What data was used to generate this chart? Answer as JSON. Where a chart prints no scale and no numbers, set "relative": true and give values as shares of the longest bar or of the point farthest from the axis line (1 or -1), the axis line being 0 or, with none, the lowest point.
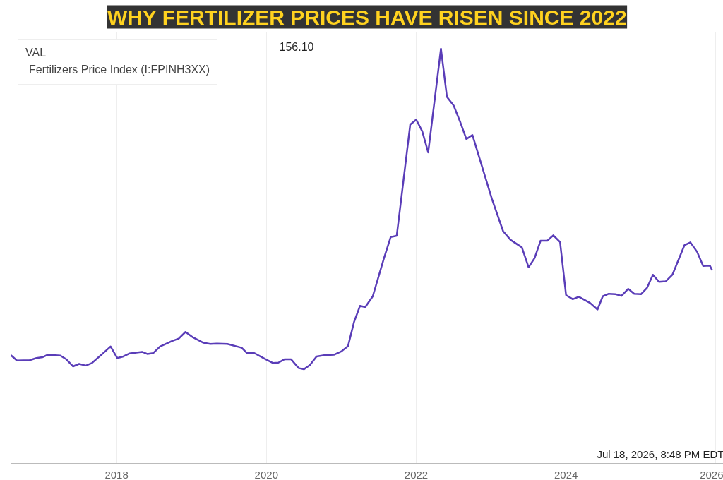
{
  "chart_data": {
    "type": "line",
    "title": "WHY FERTILIZER PRICES HAVE RISEN SINCE 2022",
    "relative": true,
    "legend_title": "VAL",
    "legend": "top left",
    "grid": "x",
    "xlim": [
      2016.59,
      2026.1
    ],
    "xticks": [
      2018,
      2020,
      2022,
      2024,
      2026
    ],
    "annotations": [
      "156.10",
      "Jul 18, 2026, 8:48 PM EDT"
    ],
    "series": [
      {
        "name": "Fertilizers Price Index (I:FPINH3XX)",
        "color": "#5a3db8",
        "x": [
          2016.59,
          2016.67,
          2016.84,
          2016.93,
          2017.01,
          2017.08,
          2017.25,
          2017.33,
          2017.42,
          2017.5,
          2017.59,
          2017.67,
          2017.81,
          2017.92,
          2018.01,
          2018.09,
          2018.17,
          2018.34,
          2018.41,
          2018.49,
          2018.58,
          2018.74,
          2018.83,
          2018.92,
          2019.02,
          2019.16,
          2019.25,
          2019.34,
          2019.48,
          2019.67,
          2019.74,
          2019.84,
          2019.98,
          2020.09,
          2020.16,
          2020.24,
          2020.33,
          2020.43,
          2020.5,
          2020.58,
          2020.67,
          2020.77,
          2020.9,
          2021.0,
          2021.09,
          2021.17,
          2021.25,
          2021.32,
          2021.42,
          2021.57,
          2021.66,
          2021.74,
          2021.8,
          2021.92,
          2022.0,
          2022.08,
          2022.16,
          2022.33,
          2022.41,
          2022.5,
          2022.59,
          2022.67,
          2022.75,
          2022.85,
          2023.01,
          2023.16,
          2023.26,
          2023.41,
          2023.5,
          2023.58,
          2023.66,
          2023.75,
          2023.83,
          2023.92,
          2024.0,
          2024.09,
          2024.17,
          2024.32,
          2024.42,
          2024.49,
          2024.57,
          2024.66,
          2024.74,
          2024.83,
          2024.91,
          2025.0,
          2025.08,
          2025.16,
          2025.24,
          2025.33,
          2025.42,
          2025.58,
          2025.66,
          2025.75,
          2025.83,
          2025.92,
          2025.95
        ],
        "values": [
          0.261,
          0.248,
          0.249,
          0.254,
          0.256,
          0.262,
          0.26,
          0.251,
          0.234,
          0.24,
          0.236,
          0.242,
          0.264,
          0.282,
          0.254,
          0.258,
          0.265,
          0.269,
          0.264,
          0.266,
          0.282,
          0.295,
          0.301,
          0.317,
          0.304,
          0.291,
          0.288,
          0.289,
          0.288,
          0.279,
          0.266,
          0.266,
          0.252,
          0.242,
          0.243,
          0.251,
          0.251,
          0.23,
          0.227,
          0.237,
          0.258,
          0.261,
          0.262,
          0.27,
          0.283,
          0.341,
          0.38,
          0.377,
          0.403,
          0.495,
          0.546,
          0.549,
          0.638,
          0.817,
          0.829,
          0.801,
          0.75,
          1.0,
          0.884,
          0.863,
          0.822,
          0.782,
          0.792,
          0.733,
          0.638,
          0.56,
          0.539,
          0.521,
          0.473,
          0.495,
          0.537,
          0.537,
          0.55,
          0.534,
          0.406,
          0.396,
          0.402,
          0.387,
          0.371,
          0.403,
          0.409,
          0.408,
          0.404,
          0.421,
          0.409,
          0.408,
          0.423,
          0.455,
          0.438,
          0.439,
          0.455,
          0.526,
          0.533,
          0.51,
          0.476,
          0.477,
          0.466
        ]
      }
    ]
  }
}
